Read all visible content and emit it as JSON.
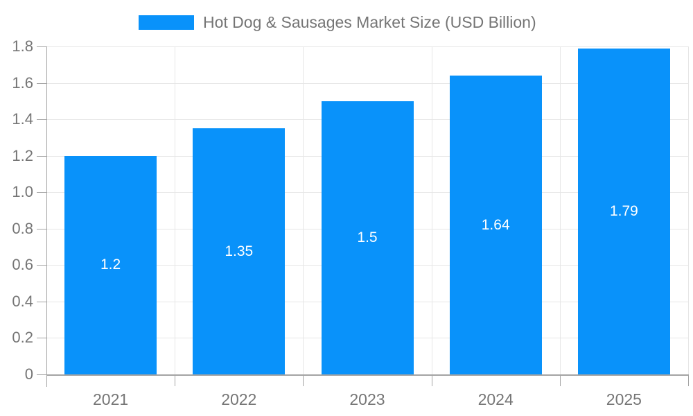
{
  "chart_data": {
    "type": "bar",
    "title": "Hot Dog & Sausages Market Size (USD Billion)",
    "categories": [
      "2021",
      "2022",
      "2023",
      "2024",
      "2025"
    ],
    "values": [
      1.2,
      1.35,
      1.5,
      1.64,
      1.79
    ],
    "value_labels": [
      "1.2",
      "1.35",
      "1.5",
      "1.64",
      "1.79"
    ],
    "series_name": "Hot Dog & Sausages Market Size (USD Billion)",
    "xlabel": "",
    "ylabel": "",
    "ylim": [
      0,
      1.8
    ],
    "yticks": [
      "0",
      "0.2",
      "0.4",
      "0.6",
      "0.8",
      "1.0",
      "1.2",
      "1.4",
      "1.6",
      "1.8"
    ],
    "grid": "on",
    "legend_position": "top",
    "colors": {
      "bar": "#0992fa",
      "grid": "#e6e6e6",
      "axis": "#a3a3a3",
      "text": "#757575",
      "value_label": "#ffffff",
      "background": "#ffffff"
    }
  }
}
